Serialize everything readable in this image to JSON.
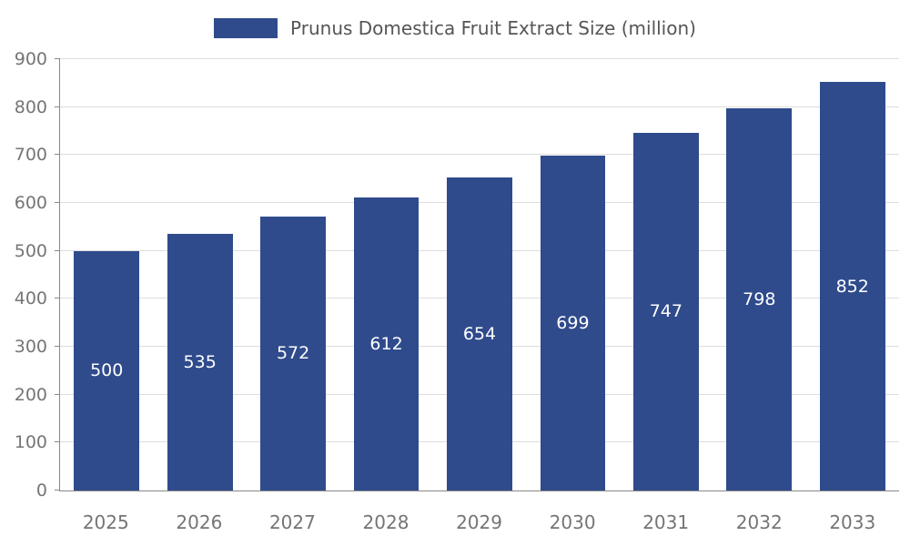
{
  "chart_data": {
    "type": "bar",
    "title": "Prunus Domestica Fruit Extract Size (million)",
    "categories": [
      "2025",
      "2026",
      "2027",
      "2028",
      "2029",
      "2030",
      "2031",
      "2032",
      "2033"
    ],
    "values": [
      500,
      535,
      572,
      612,
      654,
      699,
      747,
      798,
      852
    ],
    "xlabel": "",
    "ylabel": "",
    "ylim": [
      0,
      900
    ],
    "yticks": [
      0,
      100,
      200,
      300,
      400,
      500,
      600,
      700,
      800,
      900
    ],
    "grid": true,
    "legend_position": "top-center",
    "colors": {
      "bar": "#2f4b8c",
      "bar_label_text": "#ffffff",
      "axis_line": "#888888",
      "gridline": "#dddddd",
      "tick_text": "#757575",
      "legend_text": "#555555"
    }
  }
}
